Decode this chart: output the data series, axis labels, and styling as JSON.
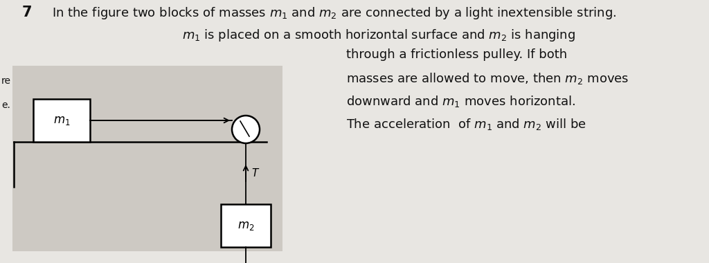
{
  "bg_color": "#e8e6e2",
  "text_color": "#111111",
  "question_number": "7",
  "title_line1": "In the figure two blocks of masses $m_1$ and $m_2$ are connected by a light inextensible string.",
  "title_line2": "$m_1$ is placed on a smooth horizontal surface and $m_2$ is hanging",
  "body_line1": "through a frictionless pulley. If both",
  "body_line2": "masses are allowed to move, then $m_2$ moves",
  "body_line3": "downward and $m_1$ moves horizontal.",
  "body_line4": "The acceleration  of $m_1$ and $m_2$ will be",
  "fig_bg": "#cdc9c3",
  "left_edge_text1": "re",
  "left_edge_text2": "e.",
  "font_size_title": 13,
  "font_size_body": 13,
  "font_size_qnum": 15,
  "font_size_diagram": 11
}
